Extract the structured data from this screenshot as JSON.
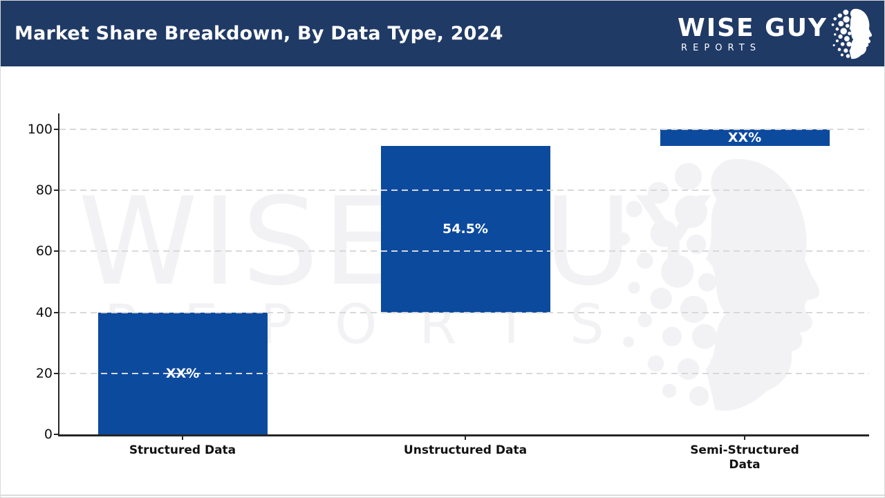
{
  "header": {
    "title": "Market Share Breakdown, By Data Type, 2024",
    "bg_color": "#203a66",
    "logo": {
      "wordmark": "WISE GUY",
      "subtext": "REPORTS",
      "head_icon": "dotted-face-profile",
      "color": "#ffffff"
    }
  },
  "watermark": {
    "wordmark": "WISE GUY",
    "subtext": "REPORTS",
    "head_icon": "dotted-face-profile",
    "color": "#f2f2f5"
  },
  "chart_data": {
    "type": "bar",
    "variant": "waterfall",
    "title": "Market Share Breakdown, By Data Type, 2024",
    "categories": [
      "Structured Data",
      "Unstructured Data",
      "Semi-Structured Data"
    ],
    "series": [
      {
        "name": "Market share (%)",
        "segments": [
          {
            "category": "Structured Data",
            "start": 0,
            "end": 40,
            "label": "XX%"
          },
          {
            "category": "Unstructured Data",
            "start": 40,
            "end": 94.5,
            "label": "54.5%"
          },
          {
            "category": "Semi-Structured Data",
            "start": 94.5,
            "end": 100,
            "label": "XX%"
          }
        ]
      }
    ],
    "ylim": [
      0,
      100
    ],
    "yticks": [
      0,
      20,
      40,
      60,
      80,
      100
    ],
    "xlabel": "",
    "ylabel": "",
    "legend": false,
    "grid": {
      "axis": "y",
      "style": "dashed",
      "color": "#d8d8d8",
      "drawn_over_bars": true
    },
    "bar_color": "#0c4a9e",
    "bar_label_color": "#ffffff",
    "axis_color": "#262626"
  }
}
